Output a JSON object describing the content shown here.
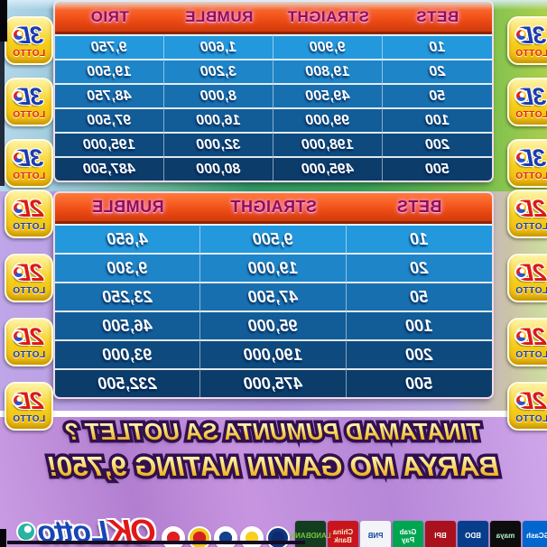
{
  "badges": {
    "d3": {
      "num": "3D",
      "label": "LOTTO"
    },
    "d2": {
      "num": "2D",
      "label": "LOTTO"
    }
  },
  "tables": [
    {
      "id": "3d-lotto-payouts",
      "headers": [
        "BETS",
        "STRAIGHT",
        "RUMBLE",
        "TRIO"
      ],
      "rows": [
        [
          "10",
          "9,900",
          "1,600",
          "9,750"
        ],
        [
          "20",
          "19,800",
          "3,200",
          "19,500"
        ],
        [
          "50",
          "49,500",
          "8,000",
          "48,750"
        ],
        [
          "100",
          "99,000",
          "16,000",
          "97,500"
        ],
        [
          "200",
          "198,000",
          "32,000",
          "195,000"
        ],
        [
          "500",
          "495,000",
          "80,000",
          "487,500"
        ]
      ]
    },
    {
      "id": "2d-lotto-payouts",
      "headers": [
        "BETS",
        "STRAIGHT",
        "RUMBLE"
      ],
      "rows": [
        [
          "10",
          "9,500",
          "4,650"
        ],
        [
          "20",
          "19,000",
          "9,300"
        ],
        [
          "50",
          "47,500",
          "23,250"
        ],
        [
          "100",
          "95,000",
          "46,500"
        ],
        [
          "200",
          "190,000",
          "93,000"
        ],
        [
          "500",
          "475,000",
          "232,500"
        ]
      ]
    }
  ],
  "chart_data": [
    {
      "type": "table",
      "title": "3D LOTTO payouts",
      "columns": [
        "BETS",
        "STRAIGHT",
        "RUMBLE",
        "TRIO"
      ],
      "rows": [
        [
          10,
          9900,
          1600,
          9750
        ],
        [
          20,
          19800,
          3200,
          19500
        ],
        [
          50,
          49500,
          8000,
          48750
        ],
        [
          100,
          99000,
          16000,
          97500
        ],
        [
          200,
          198000,
          32000,
          195000
        ],
        [
          500,
          495000,
          80000,
          487500
        ]
      ]
    },
    {
      "type": "table",
      "title": "2D LOTTO payouts",
      "columns": [
        "BETS",
        "STRAIGHT",
        "RUMBLE"
      ],
      "rows": [
        [
          10,
          9500,
          4650
        ],
        [
          20,
          19000,
          9300
        ],
        [
          50,
          47500,
          23250
        ],
        [
          100,
          95000,
          46500
        ],
        [
          200,
          190000,
          93000
        ],
        [
          500,
          475000,
          232500
        ]
      ]
    }
  ],
  "footer": {
    "line1": "TINATAMAD PUMUNTA SA UOTLET ?",
    "line2": "BARYA MO GAWIN NATING 9,750!"
  },
  "logos": {
    "oklotto": {
      "ok": "OK",
      "lotto": "Lotto"
    },
    "payments": [
      {
        "name": "gcash",
        "label": "GCash",
        "bg": "#0167cf",
        "fg": "#ffffff"
      },
      {
        "name": "maya",
        "label": "maya",
        "bg": "#0d0d0d",
        "fg": "#b8f5d0"
      },
      {
        "name": "bdo",
        "label": "BDO",
        "bg": "#063e8c",
        "fg": "#ffffff"
      },
      {
        "name": "bpi",
        "label": "BPI",
        "bg": "#a9121c",
        "fg": "#ffffff"
      },
      {
        "name": "grabpay",
        "label": "Grab Pay",
        "bg": "#00a550",
        "fg": "#ffffff"
      },
      {
        "name": "pnb",
        "label": "PNB",
        "bg": "#f2f4f8",
        "fg": "#14459c"
      },
      {
        "name": "chinabank",
        "label": "China Bank",
        "bg": "#c8151d",
        "fg": "#fbe9c6"
      },
      {
        "name": "landbank",
        "label": "LANDBANK",
        "bg": "#123d1e",
        "fg": "#7ac142"
      }
    ],
    "seals": [
      {
        "name": "agency-navy",
        "inner": "#0c2a6e",
        "outer": "#12357e"
      },
      {
        "name": "agency-sun",
        "inner": "#f7d020",
        "outer": "#ffffff"
      },
      {
        "name": "agency-trophy",
        "inner": "#16408e",
        "outer": "#ffffff"
      },
      {
        "name": "agency-eagle",
        "inner": "#d42020",
        "outer": "#f2c51d"
      },
      {
        "name": "agency-ribbon",
        "inner": "#e02020",
        "outer": "#ffffff"
      }
    ]
  },
  "colors": {
    "header_orange": "#ee4c15",
    "table_blue_top": "#2398dc",
    "table_blue_bottom": "#0b3c6a",
    "tagline_gold": "#f0bf35",
    "tagline_outline": "#32104e",
    "badge_yellow": "#f6cf1d"
  }
}
